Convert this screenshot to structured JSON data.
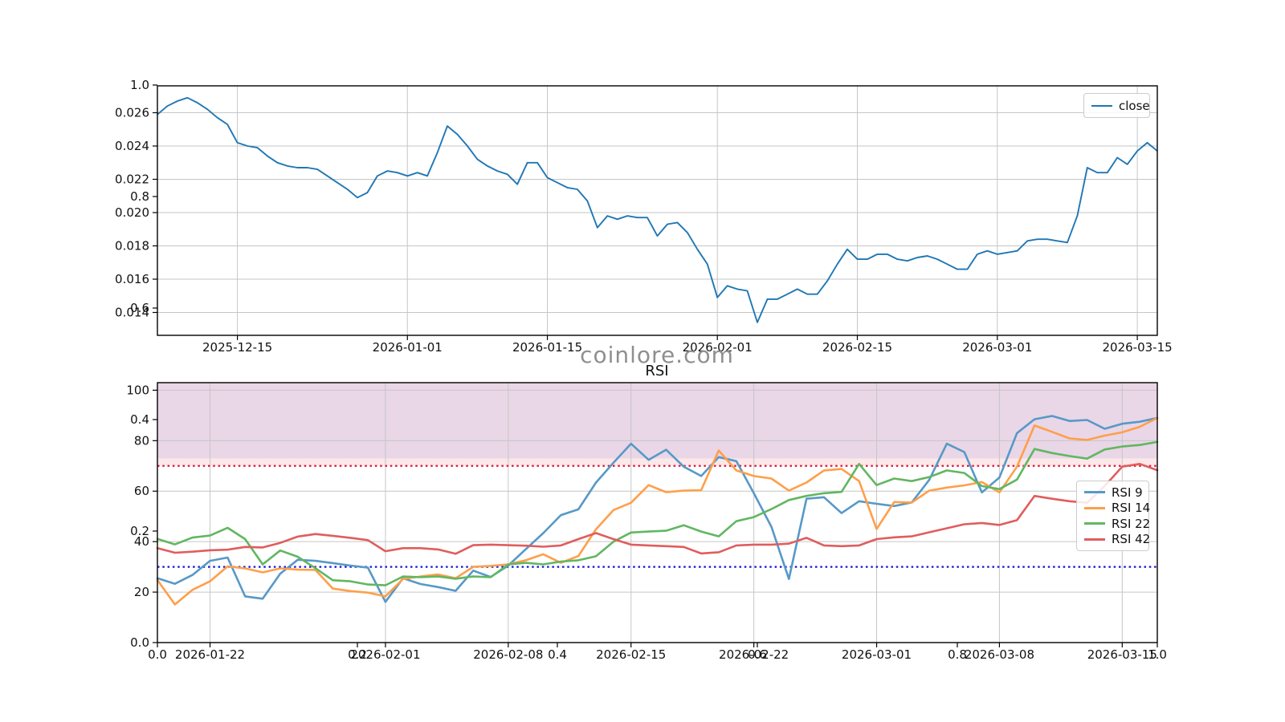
{
  "watermark": "coinlore.com",
  "colors": {
    "background": "#ffffff",
    "grid": "#c6c6c6",
    "spine": "#000000",
    "tick_text": "#111111",
    "close_line": "#1f77b4",
    "rsi9_line": "#5799c7",
    "rsi14_line": "#ff9f4a",
    "rsi22_line": "#61b761",
    "rsi42_line": "#e05d5e",
    "overbought_dotted": "#dc143c",
    "oversold_dotted": "#1414dc",
    "overbought_band": "rgba(229,57,70,0.12)",
    "oversold_band": "rgba(66,66,214,0.10)"
  },
  "overlay_axis": {
    "x_tick_labels": [
      "0.0",
      "0.2",
      "0.4",
      "0.6",
      "0.8",
      "1.0"
    ],
    "y_tick_labels": [
      "1.0",
      "0.8",
      "0.6",
      "0.4",
      "0.2",
      "0.0"
    ]
  },
  "chart_data": [
    {
      "type": "line",
      "title": "",
      "x_range": [
        "2025-12-07",
        "2026-03-17"
      ],
      "x_ticks": [
        {
          "label": "2025-12-15",
          "day": 8
        },
        {
          "label": "2026-01-01",
          "day": 25
        },
        {
          "label": "2026-01-15",
          "day": 39
        },
        {
          "label": "2026-02-01",
          "day": 56
        },
        {
          "label": "2026-02-15",
          "day": 70
        },
        {
          "label": "2026-03-01",
          "day": 84
        },
        {
          "label": "2026-03-15",
          "day": 98
        }
      ],
      "y_ticks": [
        {
          "label": "0.026",
          "value": 0.026
        },
        {
          "label": "0.024",
          "value": 0.024
        },
        {
          "label": "0.022",
          "value": 0.022
        },
        {
          "label": "0.020",
          "value": 0.02
        },
        {
          "label": "0.018",
          "value": 0.018
        },
        {
          "label": "0.016",
          "value": 0.016
        },
        {
          "label": "0.014",
          "value": 0.014
        }
      ],
      "ylim": [
        0.0126,
        0.0276
      ],
      "legend": [
        {
          "label": "close",
          "color": "#1f77b4"
        }
      ],
      "series": [
        {
          "name": "close",
          "color": "#1f77b4",
          "values": [
            0.0259,
            0.0264,
            0.0267,
            0.0269,
            0.0266,
            0.0262,
            0.0257,
            0.0253,
            0.0242,
            0.024,
            0.0239,
            0.0234,
            0.023,
            0.0228,
            0.0227,
            0.0227,
            0.0226,
            0.0222,
            0.0218,
            0.0214,
            0.0209,
            0.0212,
            0.0222,
            0.0225,
            0.0224,
            0.0222,
            0.0224,
            0.0222,
            0.0236,
            0.0252,
            0.0247,
            0.024,
            0.0232,
            0.0228,
            0.0225,
            0.0223,
            0.0217,
            0.023,
            0.023,
            0.0221,
            0.0218,
            0.0215,
            0.0214,
            0.0207,
            0.0191,
            0.0198,
            0.0196,
            0.0198,
            0.0197,
            0.0197,
            0.0186,
            0.0193,
            0.0194,
            0.0188,
            0.0178,
            0.0169,
            0.0149,
            0.0156,
            0.0154,
            0.0153,
            0.0134,
            0.0148,
            0.0148,
            0.0151,
            0.0154,
            0.0151,
            0.0151,
            0.0159,
            0.0169,
            0.0178,
            0.0172,
            0.0172,
            0.0175,
            0.0175,
            0.0172,
            0.0171,
            0.0173,
            0.0174,
            0.0172,
            0.0169,
            0.0166,
            0.0166,
            0.0175,
            0.0177,
            0.0175,
            0.0176,
            0.0177,
            0.0183,
            0.0184,
            0.0184,
            0.0183,
            0.0182,
            0.0198,
            0.0227,
            0.0224,
            0.0224,
            0.0233,
            0.0229,
            0.0237,
            0.0242,
            0.0237
          ]
        }
      ]
    },
    {
      "type": "line",
      "title": "RSI",
      "x_range": [
        "2026-01-19",
        "2026-03-17"
      ],
      "x_ticks": [
        {
          "label": "2026-01-22",
          "day": 3
        },
        {
          "label": "2026-02-01",
          "day": 13
        },
        {
          "label": "2026-02-08",
          "day": 20
        },
        {
          "label": "2026-02-15",
          "day": 27
        },
        {
          "label": "2026-02-22",
          "day": 34
        },
        {
          "label": "2026-03-01",
          "day": 41
        },
        {
          "label": "2026-03-08",
          "day": 48
        },
        {
          "label": "2026-03-15",
          "day": 55
        }
      ],
      "y_ticks": [
        {
          "label": "100",
          "value": 100
        },
        {
          "label": "80",
          "value": 80
        },
        {
          "label": "60",
          "value": 60
        },
        {
          "label": "40",
          "value": 40
        },
        {
          "label": "20",
          "value": 20
        },
        {
          "label": "0.0",
          "value": 0
        }
      ],
      "ylim": [
        0,
        103
      ],
      "overbought_level": 70,
      "oversold_level": 30,
      "bands": [
        {
          "from": 70,
          "to": 103,
          "role": "overbought"
        },
        {
          "from": 0,
          "to": 30,
          "role": "oversold"
        }
      ],
      "legend": [
        {
          "label": "RSI 9",
          "color": "#5799c7"
        },
        {
          "label": "RSI 14",
          "color": "#ff9f4a"
        },
        {
          "label": "RSI 22",
          "color": "#61b761"
        },
        {
          "label": "RSI 42",
          "color": "#e05d5e"
        }
      ],
      "series": [
        {
          "name": "RSI 9",
          "color": "#5799c7",
          "values": [
            25.5,
            23.3,
            26.8,
            32.4,
            33.7,
            18.3,
            17.4,
            27.3,
            32.8,
            32.4,
            31.5,
            30.5,
            29.7,
            16.1,
            25.5,
            23.2,
            22.0,
            20.5,
            28.5,
            26.0,
            30.5,
            37.0,
            43.4,
            50.5,
            52.8,
            63.4,
            71.3,
            78.8,
            72.4,
            76.4,
            69.7,
            66.0,
            73.5,
            71.9,
            59.2,
            45.9,
            25.2,
            57.0,
            57.6,
            51.3,
            56.0,
            55.0,
            54.1,
            55.5,
            64.5,
            78.8,
            75.5,
            59.5,
            65.4,
            83.0,
            88.5,
            89.8,
            87.8,
            88.2,
            84.7,
            86.7,
            87.5,
            89.0
          ]
        },
        {
          "name": "RSI 14",
          "color": "#ff9f4a",
          "values": [
            24.8,
            15.1,
            20.9,
            24.3,
            30.2,
            29.4,
            27.8,
            29.4,
            28.9,
            28.8,
            21.4,
            20.4,
            19.8,
            18.3,
            25.2,
            26.2,
            27.0,
            25.5,
            30.0,
            30.4,
            31.0,
            32.6,
            35.0,
            31.6,
            34.3,
            44.9,
            52.5,
            55.4,
            62.4,
            59.6,
            60.2,
            60.4,
            76.1,
            68.2,
            66.0,
            65.0,
            60.2,
            63.4,
            68.2,
            68.8,
            64.0,
            45.0,
            55.7,
            55.5,
            60.2,
            61.4,
            62.3,
            63.6,
            59.5,
            69.7,
            86.0,
            83.5,
            80.9,
            80.3,
            82.0,
            83.3,
            85.5,
            89.0
          ]
        },
        {
          "name": "RSI 22",
          "color": "#61b761",
          "values": [
            41.1,
            38.9,
            41.6,
            42.4,
            45.5,
            41.0,
            31.0,
            36.5,
            34.0,
            29.5,
            24.7,
            24.3,
            23.0,
            22.7,
            26.2,
            25.9,
            26.2,
            25.3,
            26.2,
            25.9,
            31.0,
            31.6,
            31.0,
            32.1,
            32.6,
            34.2,
            40.0,
            43.6,
            44.0,
            44.3,
            46.5,
            44.0,
            42.1,
            48.1,
            49.7,
            52.9,
            56.5,
            58.1,
            59.2,
            59.7,
            70.8,
            62.4,
            65.0,
            64.0,
            65.6,
            68.2,
            67.2,
            62.0,
            60.8,
            64.6,
            76.7,
            75.1,
            73.9,
            72.9,
            76.5,
            77.7,
            78.3,
            79.5
          ]
        },
        {
          "name": "RSI 42",
          "color": "#e05d5e",
          "values": [
            37.4,
            35.6,
            36.0,
            36.6,
            36.8,
            37.9,
            37.7,
            39.5,
            42.0,
            43.0,
            42.3,
            41.5,
            40.6,
            36.2,
            37.4,
            37.4,
            36.9,
            35.2,
            38.6,
            38.8,
            38.6,
            38.4,
            38.0,
            38.5,
            41.0,
            43.4,
            41.0,
            38.8,
            38.5,
            38.2,
            37.9,
            35.3,
            35.8,
            38.5,
            38.8,
            38.8,
            39.2,
            41.5,
            38.5,
            38.2,
            38.5,
            41.0,
            41.7,
            42.1,
            43.7,
            45.3,
            46.9,
            47.4,
            46.6,
            48.5,
            58.1,
            57.0,
            56.0,
            55.4,
            62.0,
            69.7,
            70.8,
            68.3
          ]
        }
      ]
    }
  ]
}
